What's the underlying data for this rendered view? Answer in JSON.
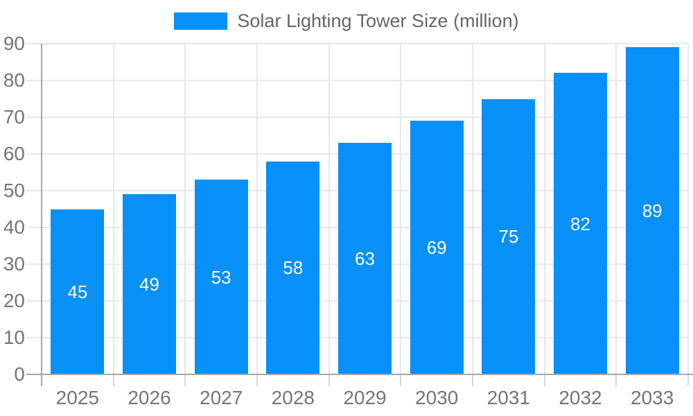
{
  "legend": {
    "label": "Solar Lighting Tower Size (million)"
  },
  "chart_data": {
    "type": "bar",
    "title": "",
    "categories": [
      "2025",
      "2026",
      "2027",
      "2028",
      "2029",
      "2030",
      "2031",
      "2032",
      "2033"
    ],
    "series": [
      {
        "name": "Solar Lighting Tower Size (million)",
        "values": [
          45,
          49,
          53,
          58,
          63,
          69,
          75,
          82,
          89
        ]
      }
    ],
    "xlabel": "",
    "ylabel": "",
    "ylim": [
      0,
      90
    ],
    "yticks": [
      0,
      10,
      20,
      30,
      40,
      50,
      60,
      70,
      80,
      90
    ],
    "grid": "both",
    "legend_position": "top-center",
    "value_labels": "inside-center",
    "colors": {
      "bar": "#0690f8",
      "axis_line": "#a6a6a6",
      "gridline": "#e7e7e7",
      "outer_tick": "#d6d6d6",
      "axis_text": "#757575",
      "legend_text": "#666666",
      "value_text": "#ffffff",
      "background": "#ffffff"
    }
  }
}
